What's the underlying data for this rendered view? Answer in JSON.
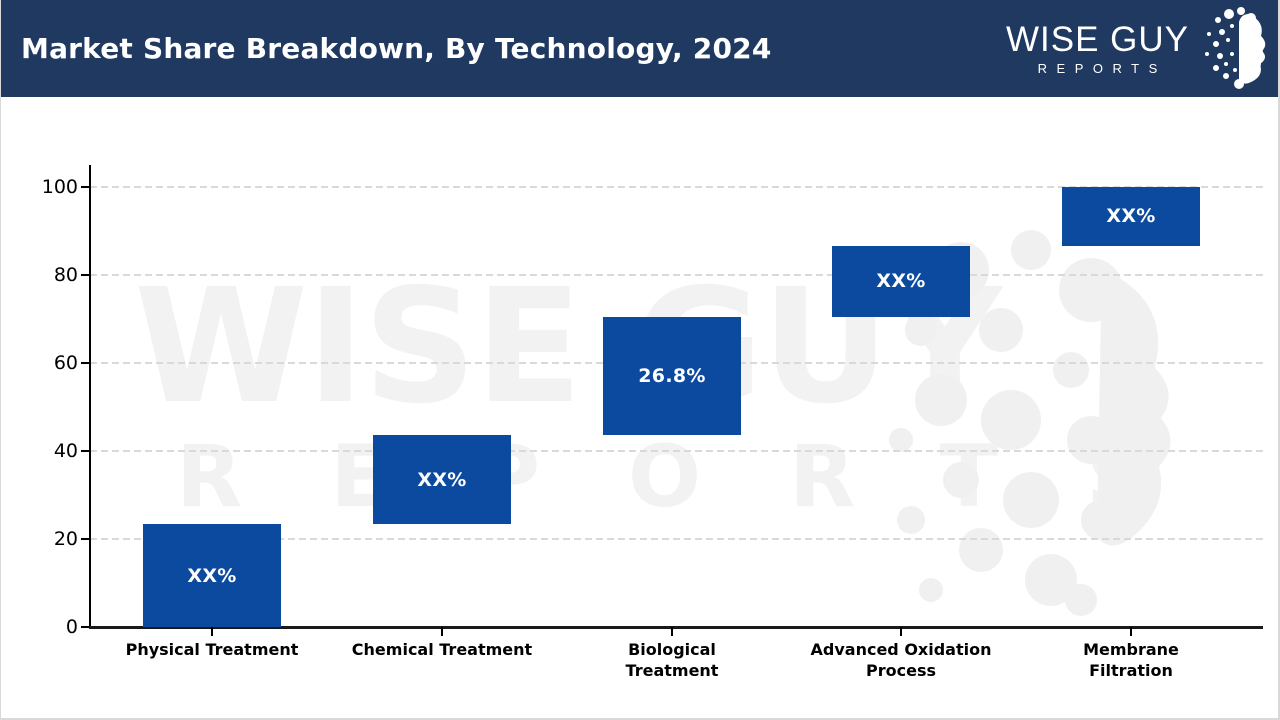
{
  "header": {
    "title": "Market Share Breakdown, By Technology, 2024",
    "logo": {
      "line1": "WISE GUY",
      "line2": "REPORTS"
    }
  },
  "watermark": {
    "line1": "WISE GUY",
    "line2": "REPORTS"
  },
  "colors": {
    "header_bg": "#203961",
    "bar_fill": "#0b4a9f",
    "bar_label": "#ffffff",
    "gridline": "#d9d9d9",
    "axis": "#000000",
    "watermark": "#f2f2f2"
  },
  "chart_data": {
    "type": "bar",
    "subtype": "waterfall",
    "title": "Market Share Breakdown, By Technology, 2024",
    "xlabel": "",
    "ylabel": "",
    "ylim": [
      0,
      100
    ],
    "yticks": [
      0,
      20,
      40,
      60,
      80,
      100
    ],
    "grid": "horizontal dashed",
    "legend": "none",
    "categories": [
      "Physical Treatment",
      "Chemical Treatment",
      "Biological Treatment",
      "Advanced Oxidation Process",
      "Membrane Filtration"
    ],
    "category_label_lines": [
      [
        "Physical Treatment"
      ],
      [
        "Chemical Treatment"
      ],
      [
        "Biological",
        "Treatment"
      ],
      [
        "Advanced Oxidation",
        "Process"
      ],
      [
        "Membrane",
        "Filtration"
      ]
    ],
    "segments": [
      {
        "category": "Physical Treatment",
        "start": 0,
        "end": 23.4,
        "value": 23.4,
        "label": "XX%"
      },
      {
        "category": "Chemical Treatment",
        "start": 23.4,
        "end": 43.6,
        "value": 20.2,
        "label": "XX%"
      },
      {
        "category": "Biological Treatment",
        "start": 43.6,
        "end": 70.4,
        "value": 26.8,
        "label": "26.8%"
      },
      {
        "category": "Advanced Oxidation Process",
        "start": 70.4,
        "end": 86.7,
        "value": 16.3,
        "label": "XX%"
      },
      {
        "category": "Membrane Filtration",
        "start": 86.7,
        "end": 100,
        "value": 13.3,
        "label": "XX%"
      }
    ]
  }
}
